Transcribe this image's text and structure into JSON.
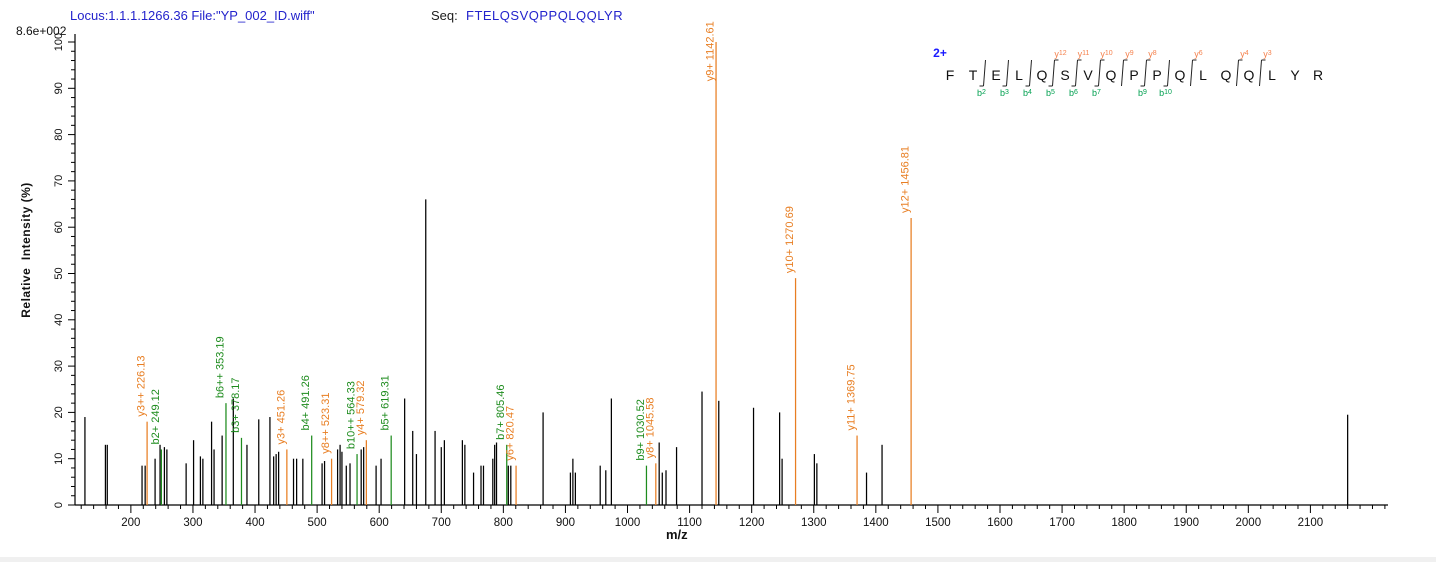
{
  "header": {
    "locus_file": "Locus:1.1.1.1266.36 File:\"YP_002_ID.wiff\"",
    "seq_label": "Seq:",
    "sequence": "FTELQSVQPPQLQQLYR",
    "intensity_scale": "8.6e+002"
  },
  "peptide_map": {
    "charge": "2+",
    "residues": [
      "F",
      "T",
      "E",
      "L",
      "Q",
      "S",
      "V",
      "Q",
      "P",
      "P",
      "Q",
      "L",
      "Q",
      "Q",
      "L",
      "Y",
      "R"
    ],
    "cleavages": [
      {
        "after": 2,
        "b": "b2"
      },
      {
        "after": 3,
        "b": "b3"
      },
      {
        "after": 4,
        "b": "b4"
      },
      {
        "after": 5,
        "b": "b5",
        "y": "y12"
      },
      {
        "after": 6,
        "b": "b6",
        "y": "y11"
      },
      {
        "after": 7,
        "b": "b7",
        "y": "y10"
      },
      {
        "after": 8,
        "y": "y9"
      },
      {
        "after": 9,
        "b": "b9",
        "y": "y8"
      },
      {
        "after": 10,
        "b": "b10"
      },
      {
        "after": 11,
        "y": "y6"
      },
      {
        "after": 13,
        "y": "y4"
      },
      {
        "after": 14,
        "y": "y3"
      }
    ],
    "colors": {
      "y_ion": "#f5824e",
      "b_ion": "#00a050",
      "charge": "#1a1aff",
      "residue": "#111111"
    }
  },
  "chart_data": {
    "type": "bar",
    "subtype": "mass-spectrum",
    "xlabel": "m/z",
    "ylabel": "Relative  Intensity (%)",
    "x_range": [
      110,
      2225
    ],
    "ylim": [
      0,
      100
    ],
    "x_tick_major": {
      "start": 200,
      "end": 2100,
      "step": 100
    },
    "x_tick_minor_step": 20,
    "y_tick_major_step": 10,
    "y_tick_minor_step": 2,
    "grid": false,
    "colors": {
      "black": "#000000",
      "green": "#1e8c1e",
      "orange": "#e87e22",
      "axis": "#000000"
    },
    "peaks": [
      {
        "mz": 126,
        "i": 19,
        "c": "black"
      },
      {
        "mz": 159,
        "i": 13,
        "c": "black"
      },
      {
        "mz": 162,
        "i": 13,
        "c": "black"
      },
      {
        "mz": 218,
        "i": 8.5,
        "c": "black"
      },
      {
        "mz": 223,
        "i": 8.5,
        "c": "black"
      },
      {
        "mz": 226.13,
        "i": 18,
        "c": "orange",
        "label": "y3++ 226.13"
      },
      {
        "mz": 239,
        "i": 10,
        "c": "black"
      },
      {
        "mz": 247,
        "i": 13,
        "c": "black"
      },
      {
        "mz": 249.12,
        "i": 12,
        "c": "green",
        "label": "b2+ 249.12"
      },
      {
        "mz": 254,
        "i": 12.5,
        "c": "black"
      },
      {
        "mz": 258,
        "i": 12,
        "c": "black"
      },
      {
        "mz": 289,
        "i": 9,
        "c": "black"
      },
      {
        "mz": 301,
        "i": 14,
        "c": "black"
      },
      {
        "mz": 312,
        "i": 10.5,
        "c": "black"
      },
      {
        "mz": 316,
        "i": 10,
        "c": "black"
      },
      {
        "mz": 330,
        "i": 18,
        "c": "black"
      },
      {
        "mz": 334,
        "i": 12,
        "c": "black"
      },
      {
        "mz": 347,
        "i": 15,
        "c": "black"
      },
      {
        "mz": 353.19,
        "i": 22,
        "c": "green",
        "label": "b6++ 353.19"
      },
      {
        "mz": 365,
        "i": 23,
        "c": "black"
      },
      {
        "mz": 378.17,
        "i": 14.5,
        "c": "green",
        "label": "b3+ 378.17"
      },
      {
        "mz": 387,
        "i": 13,
        "c": "black"
      },
      {
        "mz": 406,
        "i": 18.5,
        "c": "black"
      },
      {
        "mz": 424,
        "i": 19,
        "c": "black"
      },
      {
        "mz": 430,
        "i": 10.5,
        "c": "black"
      },
      {
        "mz": 434,
        "i": 11,
        "c": "black"
      },
      {
        "mz": 438,
        "i": 11.5,
        "c": "black"
      },
      {
        "mz": 451.26,
        "i": 12,
        "c": "orange",
        "label": "y3+ 451.26"
      },
      {
        "mz": 462,
        "i": 10,
        "c": "black"
      },
      {
        "mz": 467,
        "i": 10,
        "c": "black"
      },
      {
        "mz": 477,
        "i": 10,
        "c": "black"
      },
      {
        "mz": 491.26,
        "i": 15,
        "c": "green",
        "label": "b4+ 491.26"
      },
      {
        "mz": 508,
        "i": 9,
        "c": "black"
      },
      {
        "mz": 512,
        "i": 9.5,
        "c": "black"
      },
      {
        "mz": 523.31,
        "i": 10,
        "c": "orange",
        "label": "y8++ 523.31"
      },
      {
        "mz": 533,
        "i": 12,
        "c": "black"
      },
      {
        "mz": 537,
        "i": 13,
        "c": "black"
      },
      {
        "mz": 540,
        "i": 11.5,
        "c": "black"
      },
      {
        "mz": 547,
        "i": 8.5,
        "c": "black"
      },
      {
        "mz": 553,
        "i": 9,
        "c": "black"
      },
      {
        "mz": 564.33,
        "i": 11,
        "c": "green",
        "label": "b10++ 564.33"
      },
      {
        "mz": 571,
        "i": 12,
        "c": "black"
      },
      {
        "mz": 575,
        "i": 12.5,
        "c": "black"
      },
      {
        "mz": 579.32,
        "i": 14,
        "c": "orange",
        "label": "y4+ 579.32"
      },
      {
        "mz": 595,
        "i": 8.5,
        "c": "black"
      },
      {
        "mz": 603,
        "i": 10,
        "c": "black"
      },
      {
        "mz": 619.31,
        "i": 15,
        "c": "green",
        "label": "b5+ 619.31"
      },
      {
        "mz": 641,
        "i": 23,
        "c": "black"
      },
      {
        "mz": 654,
        "i": 16,
        "c": "black"
      },
      {
        "mz": 660,
        "i": 11,
        "c": "black"
      },
      {
        "mz": 675,
        "i": 66,
        "c": "black"
      },
      {
        "mz": 690,
        "i": 16,
        "c": "black"
      },
      {
        "mz": 700,
        "i": 12.5,
        "c": "black"
      },
      {
        "mz": 705,
        "i": 14,
        "c": "black"
      },
      {
        "mz": 734,
        "i": 14,
        "c": "black"
      },
      {
        "mz": 738,
        "i": 13,
        "c": "black"
      },
      {
        "mz": 752,
        "i": 7,
        "c": "black"
      },
      {
        "mz": 764,
        "i": 8.5,
        "c": "black"
      },
      {
        "mz": 768,
        "i": 8.5,
        "c": "black"
      },
      {
        "mz": 783,
        "i": 10,
        "c": "black"
      },
      {
        "mz": 786,
        "i": 13,
        "c": "black"
      },
      {
        "mz": 789,
        "i": 13.5,
        "c": "black"
      },
      {
        "mz": 805.46,
        "i": 13,
        "c": "green",
        "label": "b7+ 805.46"
      },
      {
        "mz": 808,
        "i": 8.5,
        "c": "black"
      },
      {
        "mz": 812,
        "i": 8.5,
        "c": "black"
      },
      {
        "mz": 820.47,
        "i": 8.5,
        "c": "orange",
        "label": "y6+ 820.47"
      },
      {
        "mz": 864,
        "i": 20,
        "c": "black"
      },
      {
        "mz": 908,
        "i": 7,
        "c": "black"
      },
      {
        "mz": 912,
        "i": 10,
        "c": "black"
      },
      {
        "mz": 916,
        "i": 7,
        "c": "black"
      },
      {
        "mz": 956,
        "i": 8.5,
        "c": "black"
      },
      {
        "mz": 965,
        "i": 7.5,
        "c": "black"
      },
      {
        "mz": 974,
        "i": 23,
        "c": "black"
      },
      {
        "mz": 1030.52,
        "i": 8.5,
        "c": "green",
        "label": "b9+ 1030.52"
      },
      {
        "mz": 1045.58,
        "i": 9,
        "c": "orange",
        "label": "y8+ 1045.58"
      },
      {
        "mz": 1051,
        "i": 13.5,
        "c": "black"
      },
      {
        "mz": 1056,
        "i": 7,
        "c": "black"
      },
      {
        "mz": 1062,
        "i": 7.5,
        "c": "black"
      },
      {
        "mz": 1079,
        "i": 12.5,
        "c": "black"
      },
      {
        "mz": 1120,
        "i": 24.5,
        "c": "black"
      },
      {
        "mz": 1142.61,
        "i": 100,
        "c": "orange",
        "label": "y9+ 1142.61"
      },
      {
        "mz": 1147,
        "i": 22.5,
        "c": "black"
      },
      {
        "mz": 1203,
        "i": 21,
        "c": "black"
      },
      {
        "mz": 1245,
        "i": 20,
        "c": "black"
      },
      {
        "mz": 1249,
        "i": 10,
        "c": "black"
      },
      {
        "mz": 1270.69,
        "i": 49,
        "c": "orange",
        "label": "y10+ 1270.69"
      },
      {
        "mz": 1301,
        "i": 11,
        "c": "black"
      },
      {
        "mz": 1305,
        "i": 9,
        "c": "black"
      },
      {
        "mz": 1369.75,
        "i": 15,
        "c": "orange",
        "label": "y11+ 1369.75"
      },
      {
        "mz": 1385,
        "i": 7,
        "c": "black"
      },
      {
        "mz": 1410,
        "i": 13,
        "c": "black"
      },
      {
        "mz": 1456.81,
        "i": 62,
        "c": "orange",
        "label": "y12+ 1456.81"
      },
      {
        "mz": 2160,
        "i": 19.5,
        "c": "black"
      }
    ]
  }
}
